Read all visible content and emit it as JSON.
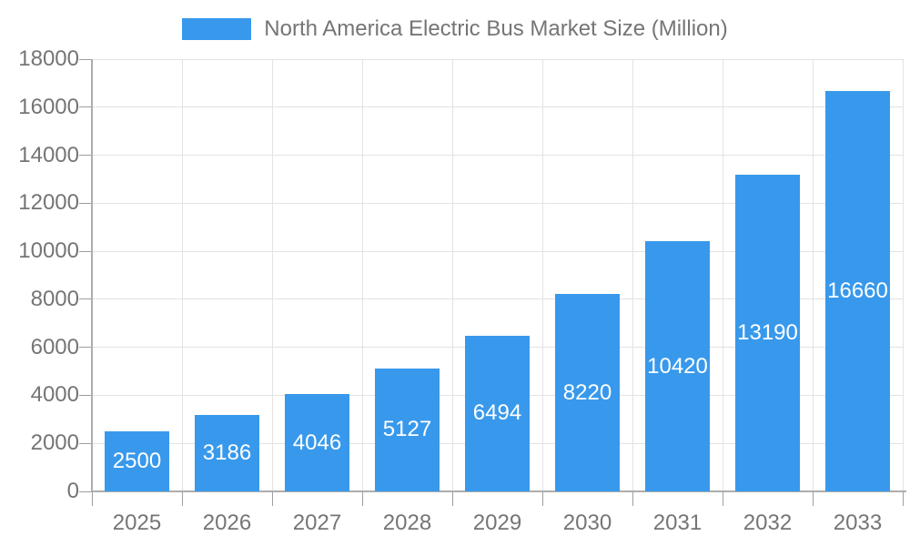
{
  "chart_data": {
    "type": "bar",
    "title": "North America Electric Bus Market Size (Million)",
    "categories": [
      "2025",
      "2026",
      "2027",
      "2028",
      "2029",
      "2030",
      "2031",
      "2032",
      "2033"
    ],
    "values": [
      2500,
      3186,
      4046,
      5127,
      6494,
      8220,
      10420,
      13190,
      16660
    ],
    "series": [
      {
        "name": "North America Electric Bus Market Size (Million)",
        "values": [
          2500,
          3186,
          4046,
          5127,
          6494,
          8220,
          10420,
          13190,
          16660
        ]
      }
    ],
    "xlabel": "",
    "ylabel": "",
    "ylim": [
      0,
      18000
    ],
    "ytick_step": 2000,
    "yticks": [
      0,
      2000,
      4000,
      6000,
      8000,
      10000,
      12000,
      14000,
      16000,
      18000
    ],
    "grid": true,
    "legend_position": "top",
    "value_labels": "inside-center"
  },
  "colors": {
    "bar": "#3899EC",
    "bar_label": "#ffffff",
    "axis_text": "#757575",
    "axis_line": "#adadad",
    "tick": "#9e9e9e",
    "gridline": "#e3e3e3",
    "background": "#ffffff"
  },
  "legend": {
    "label": "North America Electric Bus Market Size (Million)"
  }
}
